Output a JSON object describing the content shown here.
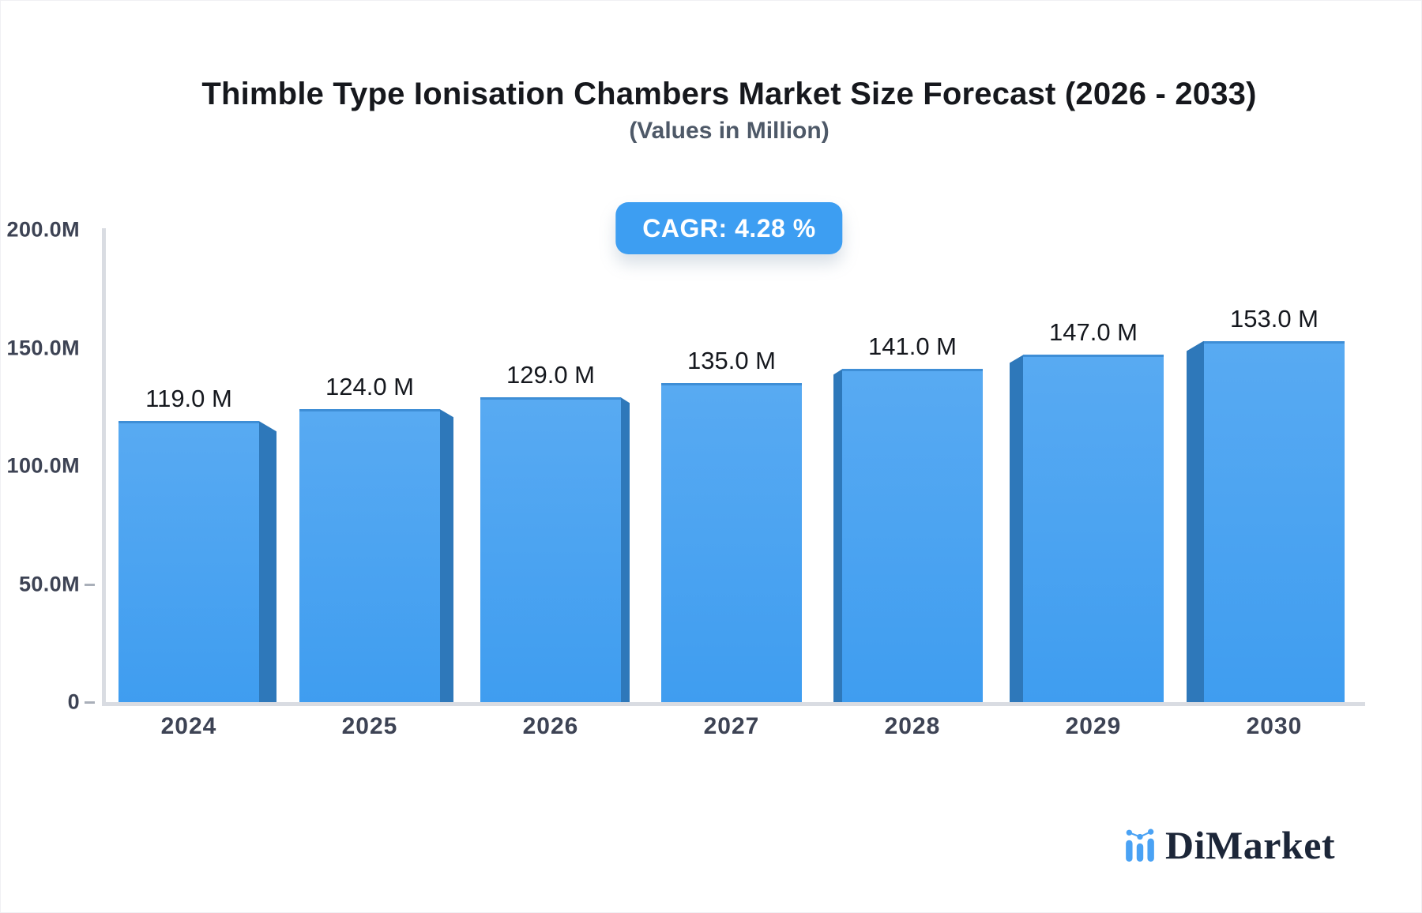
{
  "header": {
    "title": "Thimble Type Ionisation Chambers Market Size Forecast (2026 - 2033)",
    "subtitle": "(Values in Million)",
    "cagr_badge": "CAGR: 4.28 %"
  },
  "chart_data": {
    "type": "bar",
    "title": "Thimble Type Ionisation Chambers Market Size Forecast (2026 - 2033)",
    "subtitle": "(Values in Million)",
    "unit": "Million",
    "categories": [
      "2024",
      "2025",
      "2026",
      "2027",
      "2028",
      "2029",
      "2030"
    ],
    "values": [
      119.0,
      124.0,
      129.0,
      135.0,
      141.0,
      147.0,
      153.0
    ],
    "bar_labels": [
      "119.0 M",
      "124.0 M",
      "129.0 M",
      "135.0 M",
      "141.0 M",
      "147.0 M",
      "153.0 M"
    ],
    "ylim": [
      0,
      200
    ],
    "y_ticks": [
      {
        "label": "200.0M",
        "value": 200,
        "dash": false
      },
      {
        "label": "150.0M",
        "value": 150,
        "dash": false
      },
      {
        "label": "100.0M",
        "value": 100,
        "dash": false
      },
      {
        "label": "50.0M",
        "value": 50,
        "dash": true
      },
      {
        "label": "0",
        "value": 0,
        "dash": true
      }
    ],
    "grid": false,
    "legend": "none",
    "annotations": [
      "CAGR: 4.28 %"
    ],
    "style": "3d-beveled-bars, perspective toward center"
  },
  "logo": {
    "text": "DiMarket",
    "icon": "bar-chart-with-trendline-icon"
  },
  "colors": {
    "bar_top": "#58aaf2",
    "bar_bottom": "#3f9df0",
    "bar_side": "#2e78ba",
    "bar_edge": "#3e8ed6",
    "badge_bg": "#3d9ef2",
    "badge_text": "#ffffff",
    "axis_line": "#d9dce2",
    "title_text": "#16181d",
    "subtitle_text": "#4e5968",
    "tick_text": "#3d4354",
    "logo_navy": "#1c2638",
    "logo_blue": "#4aa2f4"
  }
}
